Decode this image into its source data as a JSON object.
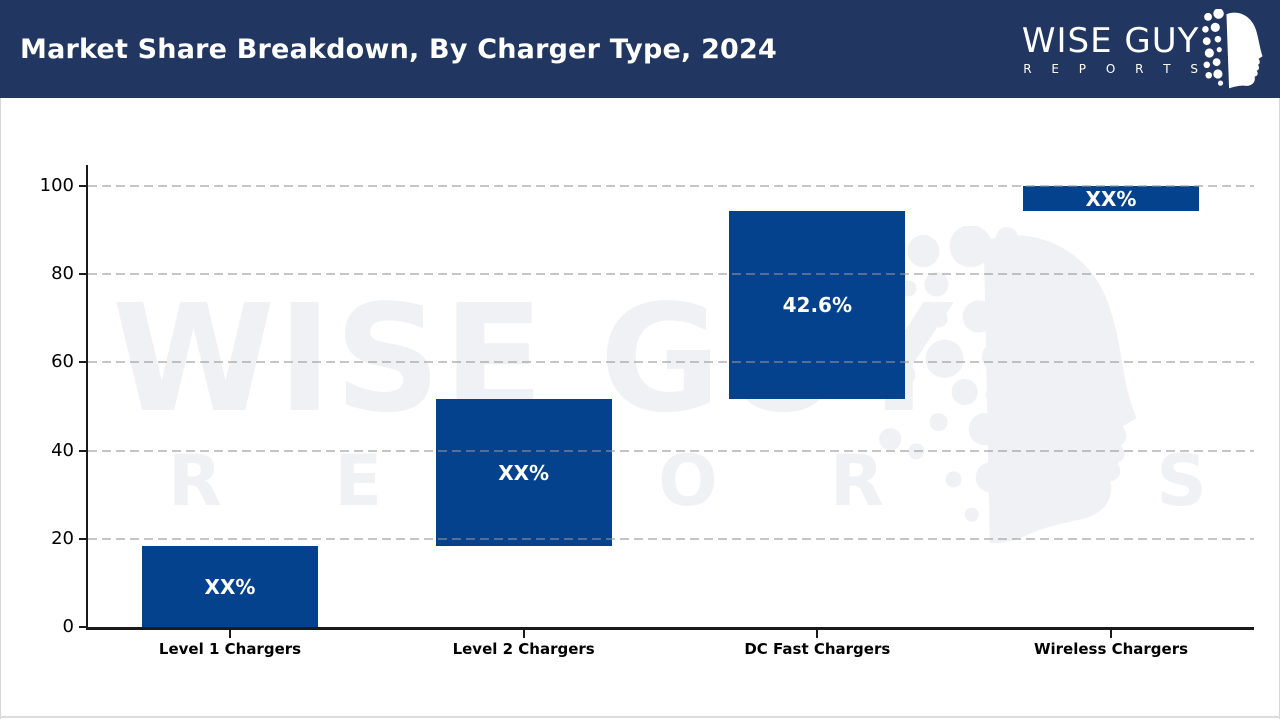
{
  "header": {
    "title": "Market Share Breakdown, By Charger Type, 2024",
    "logo": {
      "line1": "WISE GUY",
      "line2": "R E P O R T S"
    }
  },
  "watermark": {
    "line1": "WISE GUY",
    "line2": "R E P O R T S"
  },
  "colors": {
    "header_bg": "#213660",
    "bar": "#05428e",
    "axis": "#1a1a1a",
    "grid": "#bdbdbd",
    "value_text": "#ffffff",
    "watermark": "#f0f1f4"
  },
  "chart_data": {
    "type": "bar",
    "subtype": "waterfall-floating-bars",
    "title": "Market Share Breakdown, By Charger Type, 2024",
    "xlabel": "",
    "ylabel": "",
    "ylim": [
      0,
      100
    ],
    "yticks": [
      0,
      20,
      40,
      60,
      80,
      100
    ],
    "grid": "horizontal-dashed",
    "bar_color": "#05428e",
    "categories": [
      "Level 1 Chargers",
      "Level 2 Chargers",
      "DC Fast Chargers",
      "Wireless Chargers"
    ],
    "segments": [
      {
        "category": "Level 1 Chargers",
        "start": 0,
        "end": 18.3,
        "value_label": "XX%"
      },
      {
        "category": "Level 2 Chargers",
        "start": 18.3,
        "end": 51.7,
        "value_label": "XX%"
      },
      {
        "category": "DC Fast Chargers",
        "start": 51.7,
        "end": 94.3,
        "value_label": "42.6%"
      },
      {
        "category": "Wireless Chargers",
        "start": 94.3,
        "end": 100,
        "value_label": "XX%"
      }
    ]
  }
}
